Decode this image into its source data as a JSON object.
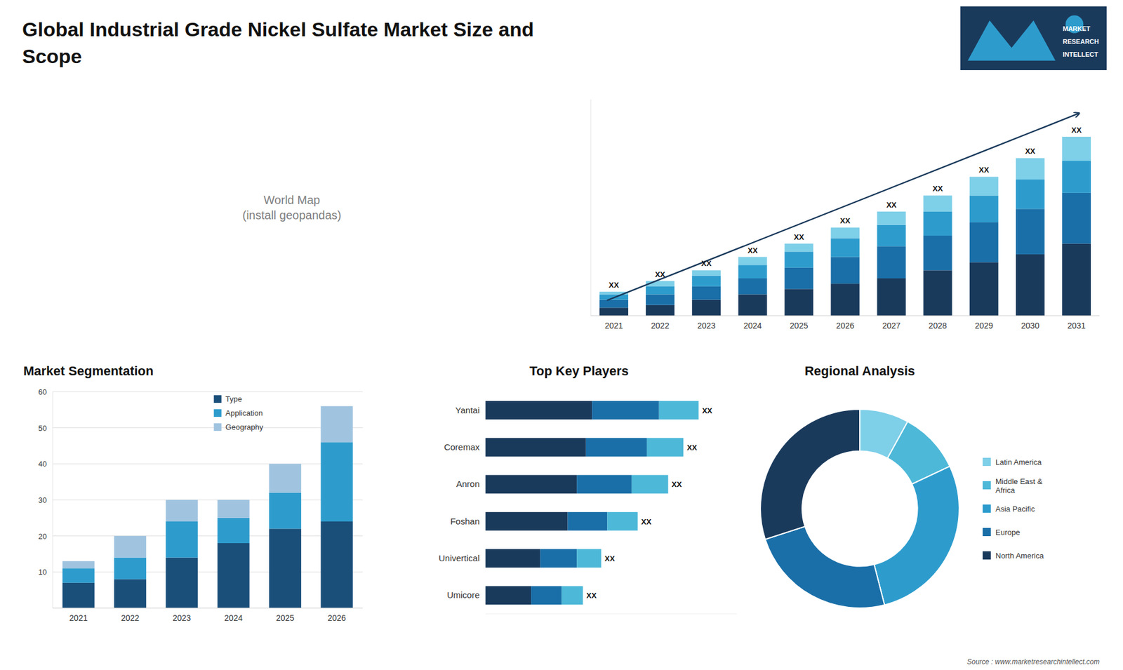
{
  "title": "Global Industrial Grade Nickel Sulfate Market Size and\nScope",
  "annotations": [
    "Source : www.marketresearchintellect.com",
    "MARKET",
    "RESEARCH",
    "INTELLECT"
  ],
  "chart_data": [
    {
      "type": "map",
      "annotations": [
        "World Map\n(install geopandas)"
      ]
    },
    {
      "type": "bar",
      "stacked": true,
      "categories": [
        "2021",
        "2022",
        "2023",
        "2024",
        "2025",
        "2026",
        "2027",
        "2028",
        "2029",
        "2030",
        "2031"
      ],
      "series": [
        {
          "color": "#1a3a5c",
          "values": [
            3,
            4,
            6,
            8,
            10,
            12,
            14,
            17,
            20,
            23,
            27
          ]
        },
        {
          "color": "#1a6fa8",
          "values": [
            3,
            4,
            5,
            6,
            8,
            10,
            12,
            13,
            15,
            17,
            19
          ]
        },
        {
          "color": "#2d9ccd",
          "values": [
            2,
            3,
            4,
            5,
            6,
            7,
            8,
            9,
            10,
            11,
            12
          ]
        },
        {
          "color": "#7ecfe8",
          "values": [
            1,
            2,
            2,
            3,
            3,
            4,
            5,
            6,
            7,
            8,
            9
          ]
        }
      ],
      "ylim": [
        0,
        81
      ],
      "tick_labels": "x",
      "grid": false,
      "annotations": [
        "XX",
        "XX",
        "XX",
        "XX",
        "XX",
        "XX",
        "XX",
        "XX",
        "XX",
        "XX",
        "XX"
      ]
    },
    {
      "type": "bar",
      "title": "Market Segmentation",
      "stacked": true,
      "categories": [
        "2021",
        "2022",
        "2023",
        "2024",
        "2025",
        "2026"
      ],
      "series": [
        {
          "name": "Type",
          "color": "#1a4f7a",
          "values": [
            7,
            8,
            14,
            18,
            22,
            24
          ]
        },
        {
          "name": "Application",
          "color": "#2d9ccd",
          "values": [
            4,
            6,
            10,
            7,
            10,
            22
          ]
        },
        {
          "name": "Geography",
          "color": "#a0c4e0",
          "values": [
            2,
            6,
            6,
            5,
            8,
            10
          ]
        }
      ],
      "ylim": [
        0,
        60
      ],
      "yticks": [
        10,
        20,
        30,
        40,
        50,
        60
      ],
      "grid": true,
      "legend": "upper center"
    },
    {
      "type": "bar",
      "title": "Top Key Players",
      "orientation": "horizontal",
      "stacked": true,
      "categories": [
        "Yantai",
        "Coremax",
        "Anron",
        "Foshan",
        "Univertical",
        "Umicore"
      ],
      "series": [
        {
          "color": "#1a3a5c",
          "values": [
            35,
            33,
            30,
            27,
            18,
            15
          ]
        },
        {
          "color": "#1a6fa8",
          "values": [
            22,
            20,
            18,
            13,
            12,
            10
          ]
        },
        {
          "color": "#4db8d8",
          "values": [
            13,
            12,
            12,
            10,
            8,
            7
          ]
        }
      ],
      "xlim": [
        0,
        82.6
      ],
      "tick_labels": "y",
      "grid": false,
      "annotations": [
        "XX",
        "XX",
        "XX",
        "XX",
        "XX",
        "XX"
      ]
    },
    {
      "type": "donut",
      "title": "Regional Analysis",
      "categories": [
        "Latin America",
        "Middle East &\nAfrica",
        "Asia Pacific",
        "Europe",
        "North America"
      ],
      "values": [
        8,
        10,
        28,
        24,
        30
      ],
      "colors": [
        "#7ecfe8",
        "#4db8d8",
        "#2d9ccd",
        "#1a6fa8",
        "#1a3a5c"
      ],
      "legend": "right"
    }
  ]
}
